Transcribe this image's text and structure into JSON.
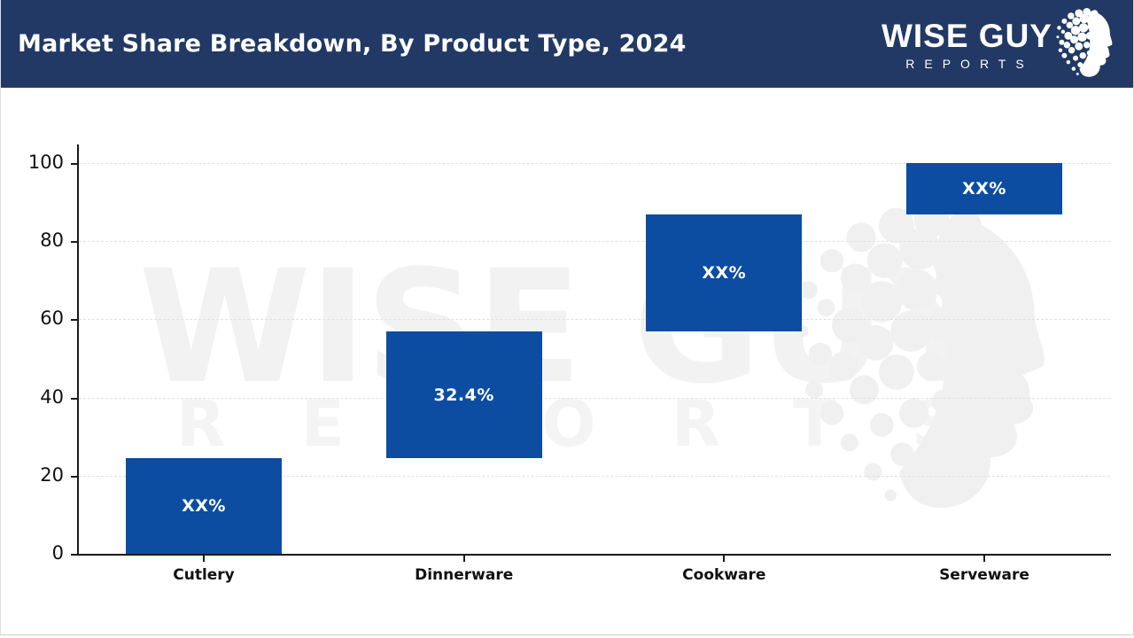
{
  "header": {
    "title": "Market Share Breakdown, By Product Type, 2024",
    "bg_color": "#213964",
    "logo": {
      "line1": "WISE GUY",
      "line2": "REPORTS"
    }
  },
  "watermark": {
    "line1": "WISE GUY",
    "line2": "REPORTS"
  },
  "chart_data": {
    "type": "bar",
    "subtype": "floating-waterfall",
    "title": "Market Share Breakdown, By Product Type, 2024",
    "categories": [
      "Cutlery",
      "Dinnerware",
      "Cookware",
      "Serveware"
    ],
    "segments": [
      {
        "category": "Cutlery",
        "start": 0,
        "end": 24.5,
        "label": "XX%"
      },
      {
        "category": "Dinnerware",
        "start": 24.5,
        "end": 56.9,
        "label": "32.4%",
        "value": 32.4
      },
      {
        "category": "Cookware",
        "start": 56.9,
        "end": 86.8,
        "label": "XX%"
      },
      {
        "category": "Serveware",
        "start": 86.8,
        "end": 100,
        "label": "XX%"
      }
    ],
    "yticks": [
      0,
      20,
      40,
      60,
      80,
      100
    ],
    "ylim": [
      0,
      105
    ],
    "xlabel": "",
    "ylabel": "",
    "grid": "horizontal-dashed",
    "legend": "none",
    "bar_color": "#0c4da2",
    "axis_color": "#1a1a1a",
    "gridline_color": "#e0e0e0"
  }
}
